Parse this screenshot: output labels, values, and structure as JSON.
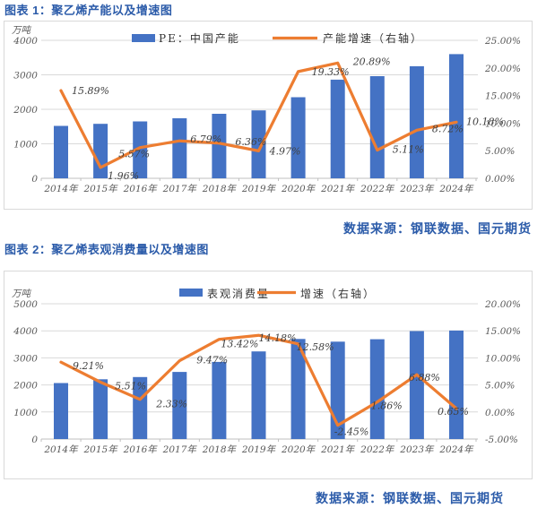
{
  "page": {
    "figure1_title": "图表 1：聚乙烯产能以及增速图",
    "figure1_source": "数据来源：钢联数据、国元期货",
    "figure2_title": "图表 2：聚乙烯表观消费量以及增速图",
    "figure2_source": "数据来源：钢联数据、国元期货"
  },
  "colors": {
    "bar": "#4472c4",
    "line": "#ed7d31",
    "title_blue": "#2b5ba9",
    "gridline": "#d9d9d9",
    "axis_line": "#bfbfbf",
    "tick_text": "#595959",
    "data_label_text": "#404040"
  },
  "chart_data": [
    {
      "type": "bar",
      "combo": "bar+line dual axis",
      "title": "图表 1：聚乙烯产能以及增速图",
      "source": "数据来源：钢联数据、国元期货",
      "categories": [
        "2014年",
        "2015年",
        "2016年",
        "2017年",
        "2018年",
        "2019年",
        "2020年",
        "2021年",
        "2022年",
        "2023年",
        "2024年"
      ],
      "series": [
        {
          "name": "PE：中国产能",
          "kind": "bar",
          "axis": "left",
          "color": "#4472c4",
          "values": [
            1520,
            1580,
            1650,
            1740,
            1870,
            1970,
            2350,
            2860,
            2960,
            3250,
            3600
          ]
        },
        {
          "name": "产能增速（右轴）",
          "kind": "line",
          "axis": "right",
          "color": "#ed7d31",
          "values": [
            15.89,
            1.96,
            5.57,
            6.79,
            6.36,
            4.97,
            19.33,
            20.89,
            5.11,
            8.72,
            10.18
          ],
          "labels": [
            "15.89%",
            "1.96%",
            "5.57%",
            "6.79%",
            "6.36%",
            "4.97%",
            "19.33%",
            "20.89%",
            "5.11%",
            "8.72%",
            "10.18%"
          ]
        }
      ],
      "left_axis": {
        "label": "万吨",
        "min": 0,
        "max": 4000,
        "ticks": [
          "4000",
          "3000",
          "2000",
          "1000",
          "0"
        ]
      },
      "right_axis": {
        "min": 0,
        "max": 25,
        "ticks": [
          "25.00%",
          "20.00%",
          "15.00%",
          "10.00%",
          "5.00%",
          "0.00%"
        ]
      },
      "legend_position": "top",
      "grid": true
    },
    {
      "type": "bar",
      "combo": "bar+line dual axis",
      "title": "图表 2：聚乙烯表观消费量以及增速图",
      "source": "数据来源：钢联数据、国元期货",
      "categories": [
        "2014年",
        "2015年",
        "2016年",
        "2017年",
        "2018年",
        "2019年",
        "2020年",
        "2021年",
        "2022年",
        "2023年",
        "2024年"
      ],
      "series": [
        {
          "name": "表观消费量",
          "kind": "bar",
          "axis": "left",
          "color": "#4472c4",
          "values": [
            2070,
            2210,
            2290,
            2480,
            2850,
            3240,
            3700,
            3600,
            3690,
            3990,
            4010
          ]
        },
        {
          "name": "增速（右轴）",
          "kind": "line",
          "axis": "right",
          "color": "#ed7d31",
          "values": [
            9.21,
            5.51,
            2.33,
            9.47,
            13.42,
            14.18,
            12.58,
            -2.45,
            1.86,
            6.88,
            0.65
          ],
          "labels": [
            "9.21%",
            "5.51%",
            "2.33%",
            "9.47%",
            "13.42%",
            "14.18%",
            "12.58%",
            "-2.45%",
            "1.86%",
            "6.88%",
            "0.65%"
          ]
        }
      ],
      "left_axis": {
        "label": "万吨",
        "min": 0,
        "max": 5000,
        "ticks": [
          "5000",
          "4000",
          "3000",
          "2000",
          "1000",
          "0"
        ]
      },
      "right_axis": {
        "min": -5,
        "max": 20,
        "ticks": [
          "20.00%",
          "15.00%",
          "10.00%",
          "5.00%",
          "0.00%",
          "-5.00%"
        ]
      },
      "legend_position": "top",
      "grid": true
    }
  ]
}
